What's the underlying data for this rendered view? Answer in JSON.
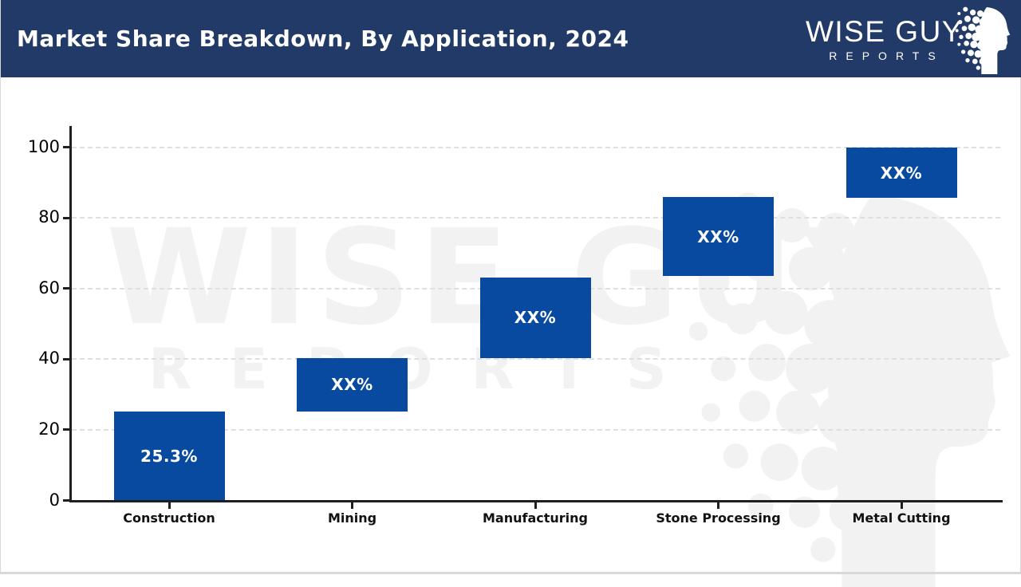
{
  "header": {
    "title": "Market Share Breakdown, By Application, 2024",
    "logo_line1": "WISE GUY",
    "logo_line2": "REPORTS"
  },
  "watermark": {
    "line1": "WISE GUY",
    "line2": "REPORTS"
  },
  "chart_data": {
    "type": "bar",
    "subtype": "floating-waterfall",
    "title": "Market Share Breakdown, By Application, 2024",
    "categories": [
      "Construction",
      "Mining",
      "Manufacturing",
      "Stone Processing",
      "Metal Cutting"
    ],
    "segments": [
      {
        "start": 0,
        "end": 25.3
      },
      {
        "start": 25.3,
        "end": 40.3
      },
      {
        "start": 40.4,
        "end": 63.1
      },
      {
        "start": 63.5,
        "end": 85.9
      },
      {
        "start": 85.7,
        "end": 100
      }
    ],
    "bar_labels": [
      "25.3%",
      "XX%",
      "XX%",
      "XX%",
      "XX%"
    ],
    "xlabel": "",
    "ylabel": "",
    "ylim": [
      0,
      106
    ],
    "yticks": [
      0,
      20,
      40,
      60,
      80,
      100
    ],
    "grid": "horizontal-dashed",
    "legend": "none",
    "bar_color": "#084a9f",
    "bar_label_color": "#ffffff"
  },
  "colors": {
    "header_bg": "#213a67",
    "bar_blue": "#084a9f",
    "watermark_gray": "#f2f2f2",
    "gridline_gray": "#dfdfdf",
    "axis_dark": "#1f1f1f",
    "edge_gray": "#d9d9d9"
  }
}
